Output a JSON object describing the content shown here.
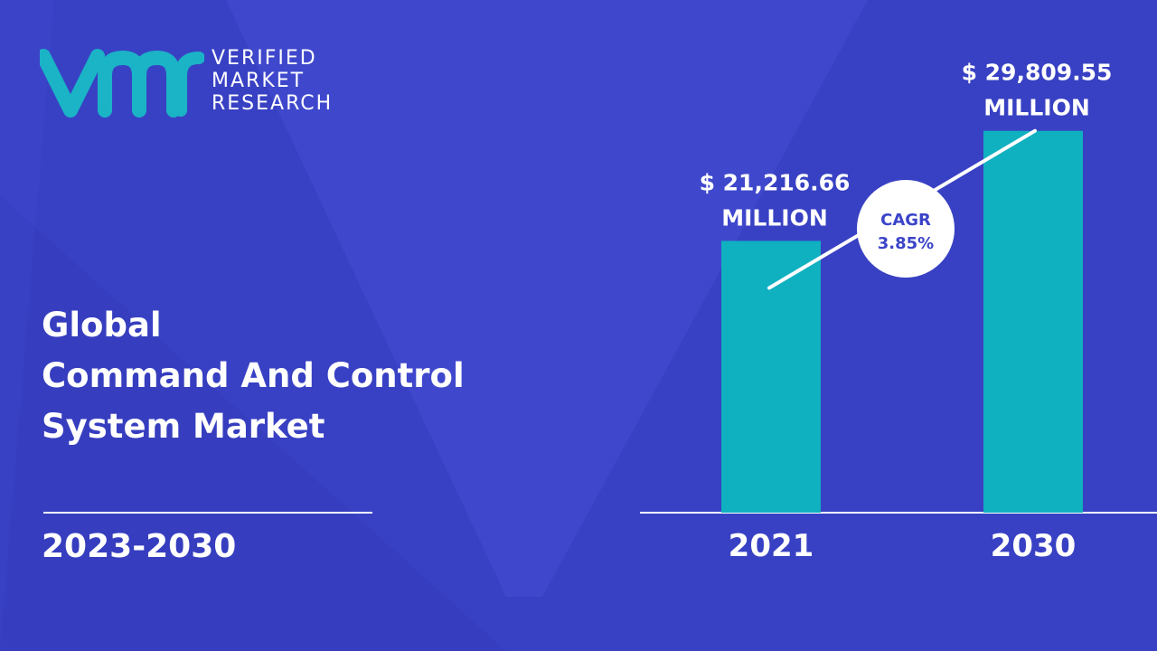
{
  "brand": {
    "line1": "VERIFIED",
    "line2": "MARKET",
    "line3": "RESEARCH",
    "logo_color": "#1bb3c6"
  },
  "title": {
    "line1": "Global",
    "line2": "Command And Control",
    "line3": "System Market"
  },
  "period": "2023-2030",
  "chart_data": {
    "type": "bar",
    "categories": [
      "2021",
      "2030"
    ],
    "values": [
      21216.66,
      29809.55
    ],
    "value_labels": [
      [
        "$ 21,216.66",
        "MILLION"
      ],
      [
        "$ 29,809.55",
        "MILLION"
      ]
    ],
    "ylim": [
      0,
      30000
    ],
    "grid": false,
    "legend": "none",
    "bar_color": "#0fb0c0",
    "cagr": {
      "label": "CAGR",
      "value": "3.85%"
    }
  }
}
